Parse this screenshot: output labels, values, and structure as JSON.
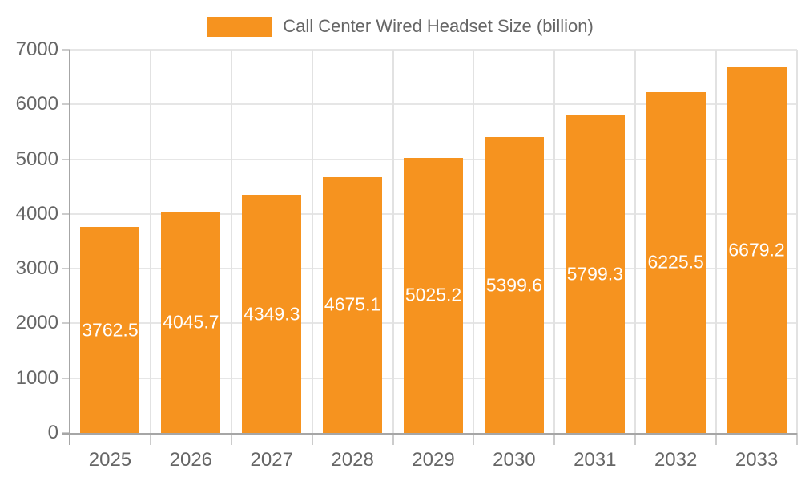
{
  "chart_data": {
    "type": "bar",
    "title": "Call Center Wired Headset Size (billion)",
    "categories": [
      "2025",
      "2026",
      "2027",
      "2028",
      "2029",
      "2030",
      "2031",
      "2032",
      "2033"
    ],
    "values": [
      3762.5,
      4045.7,
      4349.3,
      4675.1,
      5025.2,
      5399.6,
      5799.3,
      6225.5,
      6679.2
    ],
    "bar_labels": [
      "3762.5",
      "4045.7",
      "4349.3",
      "4675.1",
      "5025.2",
      "5399.6",
      "5799.3",
      "6225.5",
      "6679.2"
    ],
    "yticks": [
      0,
      1000,
      2000,
      3000,
      4000,
      5000,
      6000,
      7000
    ],
    "ytick_labels": [
      "0",
      "1000",
      "2000",
      "3000",
      "4000",
      "5000",
      "6000",
      "7000"
    ],
    "ylim": [
      0,
      7000
    ],
    "xlabel": "",
    "ylabel": "",
    "grid": true,
    "legend_position": "top-center",
    "bar_color": "#f6931f",
    "bar_label_color": "#ffffff",
    "axis_text_color": "#666666",
    "background_color": "#ffffff"
  }
}
